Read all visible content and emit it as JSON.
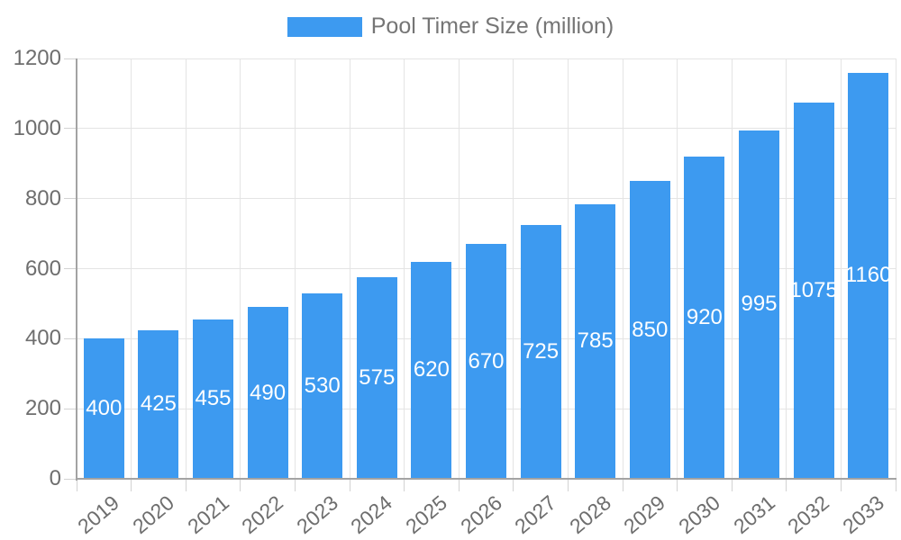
{
  "legend": {
    "label": "Pool Timer Size (million)"
  },
  "colors": {
    "bar": "#3D9AF0",
    "legend_text": "#757575",
    "axis_text": "#6e6e6e",
    "grid": "#e4e4e4",
    "axis_line": "#a3a3a3",
    "tick": "#d2d2d2",
    "value_label": "#ffffff",
    "background": "#ffffff"
  },
  "chart_data": {
    "type": "bar",
    "title": "",
    "legend_entries": [
      "Pool Timer Size (million)"
    ],
    "legend_position": "top-center",
    "categories": [
      "2019",
      "2020",
      "2021",
      "2022",
      "2023",
      "2024",
      "2025",
      "2026",
      "2027",
      "2028",
      "2029",
      "2030",
      "2031",
      "2032",
      "2033"
    ],
    "series": [
      {
        "name": "Pool Timer Size (million)",
        "values": [
          400,
          425,
          455,
          490,
          530,
          575,
          620,
          670,
          725,
          785,
          850,
          920,
          995,
          1075,
          1160
        ]
      }
    ],
    "bar_value_labels": [
      400,
      425,
      455,
      490,
      530,
      575,
      620,
      670,
      725,
      785,
      850,
      920,
      995,
      1075,
      1160
    ],
    "xlabel": "",
    "ylabel": "",
    "ylim": [
      0,
      1200
    ],
    "yticks": [
      0,
      200,
      400,
      600,
      800,
      1000,
      1200
    ],
    "grid": true,
    "x_label_rotation_deg": -40
  }
}
